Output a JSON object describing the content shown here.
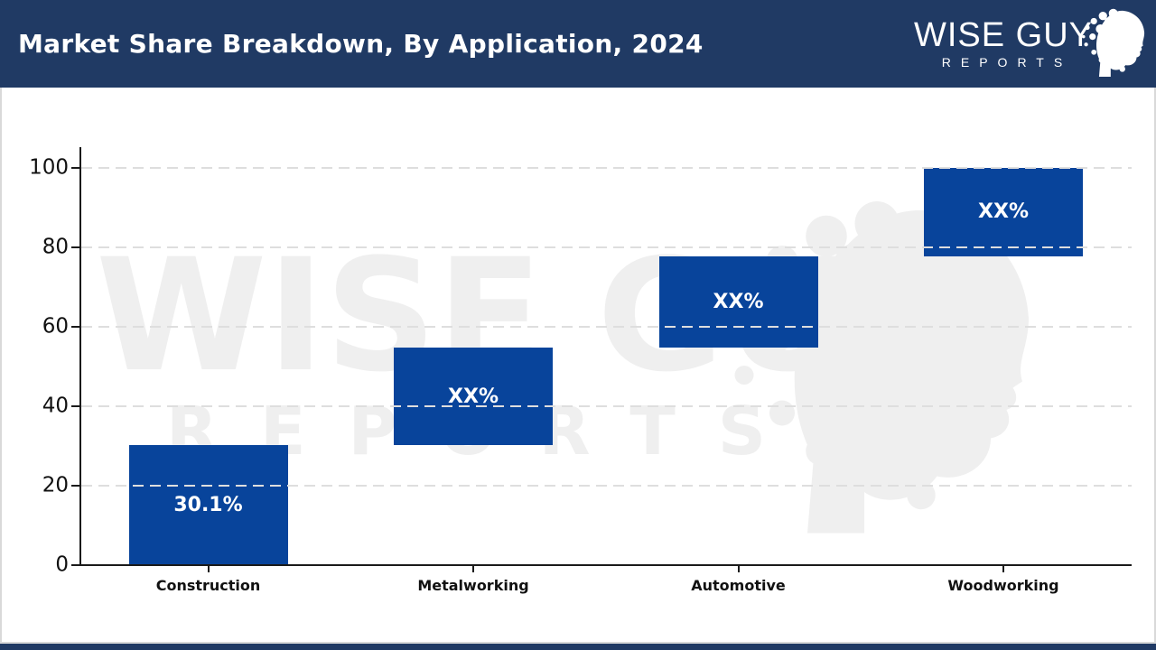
{
  "header": {
    "title": "Market Share Breakdown, By Application, 2024",
    "brand": {
      "line1": "WISE GUY",
      "line2": "REPORTS"
    },
    "background_color": "#203a64",
    "title_color": "#ffffff"
  },
  "watermark": {
    "line1": "WISE GUY",
    "line2": "REPORTS"
  },
  "chart_data": {
    "type": "bar",
    "variant": "waterfall",
    "title": "Market Share Breakdown, By Application, 2024",
    "categories": [
      "Construction",
      "Metalworking",
      "Automotive",
      "Woodworking"
    ],
    "segments": [
      {
        "category": "Construction",
        "start": 0,
        "end": 30.1,
        "label": "30.1%"
      },
      {
        "category": "Metalworking",
        "start": 30.1,
        "end": 54.6,
        "label": "XX%"
      },
      {
        "category": "Automotive",
        "start": 54.6,
        "end": 77.6,
        "label": "XX%"
      },
      {
        "category": "Woodworking",
        "start": 77.6,
        "end": 100,
        "label": "XX%"
      }
    ],
    "xlabel": "",
    "ylabel": "",
    "ylim": [
      0,
      100
    ],
    "yticks": [
      0,
      20,
      40,
      60,
      80,
      100
    ],
    "grid": "horizontal-dashed",
    "legend_visible": false,
    "bar_color": "#08449b",
    "bar_label_color": "#ffffff",
    "axis_color": "#1a1a1a",
    "gridline_color": "#dedede",
    "tick_label_color": "#111111",
    "watermark_color": "#efefef"
  },
  "footer": {
    "background_color": "#203a64"
  }
}
